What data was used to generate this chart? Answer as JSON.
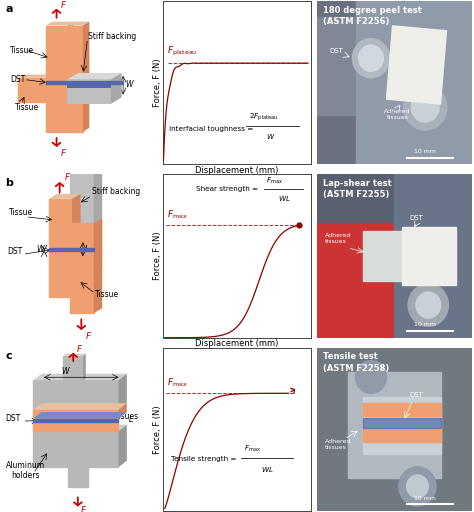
{
  "title_a": "180 degree peel test\n(ASTM F2256)",
  "title_b": "Lap-shear test\n(ASTM F2255)",
  "title_c": "Tensile test\n(ASTM F2258)",
  "xlabel": "Displacement (mm)",
  "ylabel": "Force, F (N)",
  "curve_color": "#8B0000",
  "dashed_color": "#B03030",
  "tissue_face": "#F0A070",
  "tissue_side": "#D4845A",
  "tissue_top": "#E8C0A0",
  "backing_face": "#C0C0C0",
  "backing_side": "#A8A8A8",
  "backing_top": "#D8D8D8",
  "dst_color": "#5566AA",
  "alum_face": "#B8B8B8",
  "alum_side": "#989898",
  "alum_top": "#D0D0D0",
  "arrow_red": "#CC0000",
  "bg_color": "#ffffff",
  "photo_dark": "#5A6070",
  "photo_mid": "#7A8090",
  "photo_metal": "#909090"
}
